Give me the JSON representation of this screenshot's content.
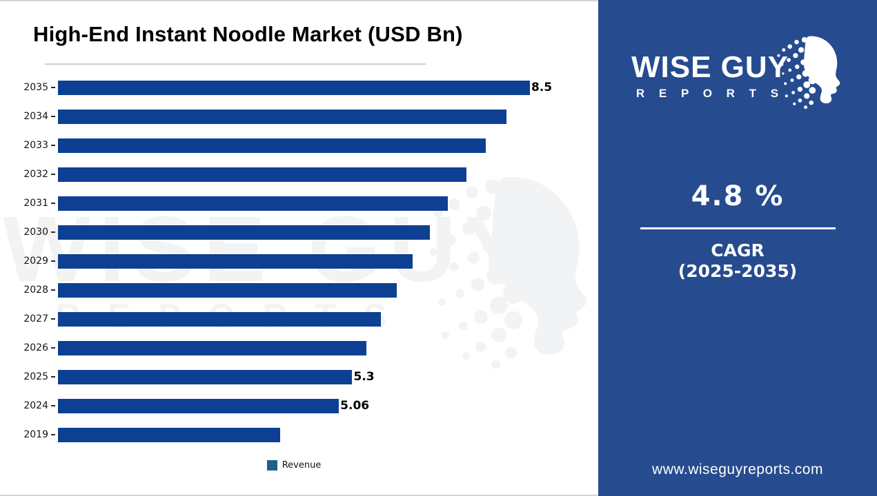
{
  "header": {
    "title": "High-End Instant Noodle Market (USD Bn)"
  },
  "chart_data": {
    "type": "bar",
    "orientation": "horizontal",
    "title": "High-End Instant Noodle Market (USD Bn)",
    "xlabel": "",
    "ylabel": "",
    "categories": [
      "2035",
      "2034",
      "2033",
      "2032",
      "2031",
      "2030",
      "2029",
      "2028",
      "2027",
      "2026",
      "2025",
      "2024",
      "2019"
    ],
    "values": [
      8.5,
      8.08,
      7.71,
      7.36,
      7.02,
      6.7,
      6.39,
      6.1,
      5.82,
      5.55,
      5.3,
      5.06,
      4.0
    ],
    "bar_labels": [
      "8.5",
      "",
      "",
      "",
      "",
      "",
      "",
      "",
      "",
      "",
      "5.3",
      "5.06",
      ""
    ],
    "series_name": "Revenue",
    "xlim": [
      0,
      8.5
    ],
    "grid": false,
    "legend_position": "bottom-center",
    "bar_color": "#0d4093"
  },
  "legend": {
    "label": "Revenue",
    "color": "#1d6088"
  },
  "watermark": {
    "line1": "WISE GUY",
    "line2": "R E P O R T S"
  },
  "panel": {
    "bg_color": "#264b8e",
    "logo_line1": "WISE GUY",
    "logo_line2": "R E P O R T S",
    "cagr_value": "4.8 %",
    "cagr_line1": "CAGR",
    "cagr_line2": "(2025-2035)",
    "website": "www.wiseguyreports.com"
  }
}
